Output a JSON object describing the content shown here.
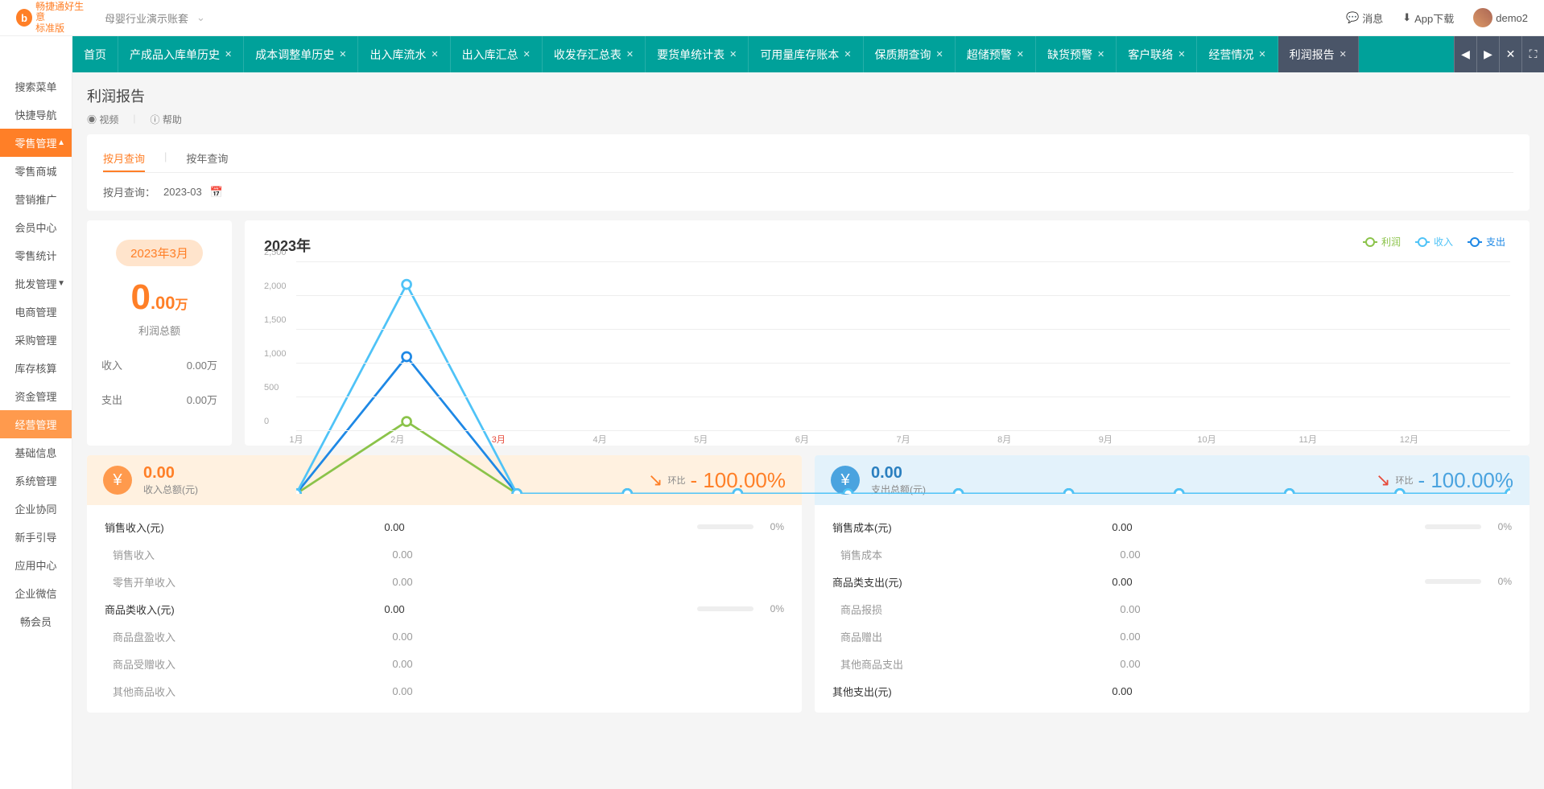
{
  "brand": {
    "name": "畅捷通好生意",
    "edition": "标准版"
  },
  "account_selector": "母婴行业演示账套",
  "topbar": {
    "msg": "消息",
    "app": "App下载",
    "user": "demo2"
  },
  "tabs": [
    {
      "label": "首页",
      "closable": false
    },
    {
      "label": "产成品入库单历史",
      "closable": true
    },
    {
      "label": "成本调整单历史",
      "closable": true
    },
    {
      "label": "出入库流水",
      "closable": true
    },
    {
      "label": "出入库汇总",
      "closable": true
    },
    {
      "label": "收发存汇总表",
      "closable": true
    },
    {
      "label": "要货单统计表",
      "closable": true
    },
    {
      "label": "可用量库存账本",
      "closable": true
    },
    {
      "label": "保质期查询",
      "closable": true
    },
    {
      "label": "超储预警",
      "closable": true
    },
    {
      "label": "缺货预警",
      "closable": true
    },
    {
      "label": "客户联络",
      "closable": true
    },
    {
      "label": "经营情况",
      "closable": true
    },
    {
      "label": "利润报告",
      "closable": true,
      "active": true
    }
  ],
  "sidebar": [
    {
      "label": "搜索菜单"
    },
    {
      "label": "快捷导航"
    },
    {
      "label": "零售管理",
      "style": "orange",
      "caret": "▲"
    },
    {
      "label": "零售商城"
    },
    {
      "label": "营销推广"
    },
    {
      "label": "会员中心"
    },
    {
      "label": "零售统计"
    },
    {
      "label": "批发管理",
      "caret": "▼"
    },
    {
      "label": "电商管理"
    },
    {
      "label": "采购管理"
    },
    {
      "label": "库存核算"
    },
    {
      "label": "资金管理"
    },
    {
      "label": "经营管理",
      "style": "orange2"
    },
    {
      "label": "基础信息"
    },
    {
      "label": "系统管理"
    },
    {
      "label": "企业协同"
    },
    {
      "label": "新手引导"
    },
    {
      "label": "应用中心"
    },
    {
      "label": "企业微信"
    },
    {
      "label": "畅会员"
    }
  ],
  "page": {
    "title": "利润报告",
    "video": "视频",
    "help": "帮助"
  },
  "subtabs": {
    "month": "按月查询",
    "year": "按年查询"
  },
  "query": {
    "label": "按月查询：",
    "value": "2023-03"
  },
  "summary": {
    "period": "2023年3月",
    "profit_int": "0",
    "profit_dec": ".00",
    "profit_unit": "万",
    "profit_label": "利润总额",
    "income_label": "收入",
    "income_value": "0.00万",
    "expense_label": "支出",
    "expense_value": "0.00万"
  },
  "chart": {
    "title": "2023年",
    "legend": {
      "profit": "利润",
      "income": "收入",
      "expense": "支出"
    },
    "colors": {
      "profit": "#8bc34a",
      "income": "#4fc3f7",
      "expense": "#1e88e5"
    },
    "y_labels": [
      "0",
      "500",
      "1,000",
      "1,500",
      "2,000",
      "2,500"
    ],
    "x_labels": [
      "1月",
      "2月",
      "3月",
      "4月",
      "5月",
      "6月",
      "7月",
      "8月",
      "9月",
      "10月",
      "11月",
      "12月"
    ],
    "x_highlight_index": 2,
    "ymax": 2500,
    "series": {
      "profit": [
        0,
        780,
        0,
        0,
        0,
        0,
        0,
        0,
        0,
        0,
        0,
        0
      ],
      "income": [
        0,
        2260,
        0,
        0,
        0,
        0,
        0,
        0,
        0,
        0,
        0,
        0
      ],
      "expense": [
        0,
        1480,
        0,
        0,
        0,
        0,
        0,
        0,
        0,
        0,
        0,
        0
      ]
    }
  },
  "income_card": {
    "value": "0.00",
    "label": "收入总额(元)",
    "hb": "环比",
    "pct": "- 100.00%",
    "rows": [
      {
        "t": "hdr",
        "label": "销售收入(元)",
        "val": "0.00",
        "pct": "0%"
      },
      {
        "t": "sub",
        "label": "销售收入",
        "val": "0.00"
      },
      {
        "t": "sub",
        "label": "零售开单收入",
        "val": "0.00"
      },
      {
        "t": "hdr",
        "label": "商品类收入(元)",
        "val": "0.00",
        "pct": "0%"
      },
      {
        "t": "sub",
        "label": "商品盘盈收入",
        "val": "0.00"
      },
      {
        "t": "sub",
        "label": "商品受赠收入",
        "val": "0.00"
      },
      {
        "t": "sub",
        "label": "其他商品收入",
        "val": "0.00"
      }
    ]
  },
  "expense_card": {
    "value": "0.00",
    "label": "支出总额(元)",
    "hb": "环比",
    "pct": "- 100.00%",
    "rows": [
      {
        "t": "hdr",
        "label": "销售成本(元)",
        "val": "0.00",
        "pct": "0%"
      },
      {
        "t": "sub",
        "label": "销售成本",
        "val": "0.00"
      },
      {
        "t": "hdr",
        "label": "商品类支出(元)",
        "val": "0.00",
        "pct": "0%"
      },
      {
        "t": "sub",
        "label": "商品报损",
        "val": "0.00"
      },
      {
        "t": "sub",
        "label": "商品赠出",
        "val": "0.00"
      },
      {
        "t": "sub",
        "label": "其他商品支出",
        "val": "0.00"
      },
      {
        "t": "hdr",
        "label": "其他支出(元)",
        "val": "0.00"
      }
    ]
  }
}
